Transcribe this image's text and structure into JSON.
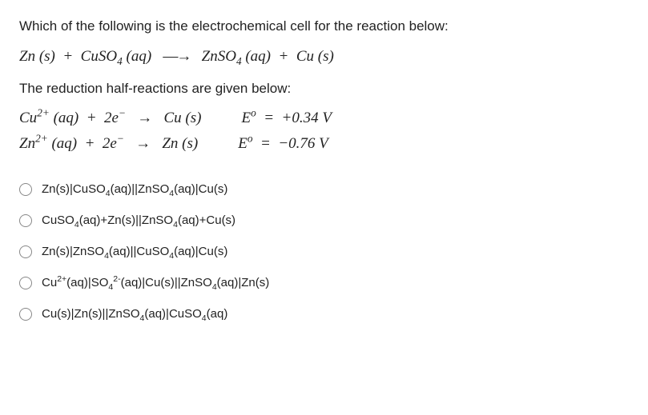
{
  "question": {
    "intro": "Which of the following is the electrochemical cell for the reaction below:",
    "main_equation_html": "Zn (s) &nbsp;+&nbsp; CuSO<sub>4</sub> (aq) &nbsp;&nbsp;<span class='arrow-long'>—→</span>&nbsp;&nbsp; ZnSO<sub>4</sub> (aq) &nbsp;+&nbsp; Cu (s)",
    "half_intro": "The reduction half-reactions are given below:",
    "half1_lhs_html": "Cu<sup>2+</sup> (aq) &nbsp;+&nbsp; 2e<sup>−</sup> &nbsp;&nbsp;→&nbsp;&nbsp; Cu (s)",
    "half1_rhs_html": "E<sup>o</sup> &nbsp;=&nbsp; +0.34 V",
    "half2_lhs_html": "Zn<sup>2+</sup> (aq) &nbsp;+&nbsp; 2e<sup>−</sup> &nbsp;&nbsp;→&nbsp;&nbsp; Zn (s)",
    "half2_rhs_html": "E<sup>o</sup> &nbsp;=&nbsp; −0.76 V"
  },
  "options": [
    {
      "html": "Zn(s)|CuSO<sub>4</sub>(aq)||ZnSO<sub>4</sub>(aq)|Cu(s)"
    },
    {
      "html": "CuSO<sub>4</sub>(aq)+Zn(s)||ZnSO<sub>4</sub>(aq)+Cu(s)"
    },
    {
      "html": "Zn(s)|ZnSO<sub>4</sub>(aq)||CuSO<sub>4</sub>(aq)|Cu(s)"
    },
    {
      "html": "Cu<sup>2+</sup>(aq)|SO<sub>4</sub><sup>2-</sup>(aq)|Cu(s)||ZnSO<sub>4</sub>(aq)|Zn(s)"
    },
    {
      "html": "Cu(s)|Zn(s)||ZnSO<sub>4</sub>(aq)|CuSO<sub>4</sub>(aq)"
    }
  ],
  "styles": {
    "body_font_size": 17,
    "equation_font_size": 19,
    "option_font_size": 15,
    "text_color": "#222222",
    "background_color": "#ffffff",
    "radio_border_color": "#888888"
  }
}
